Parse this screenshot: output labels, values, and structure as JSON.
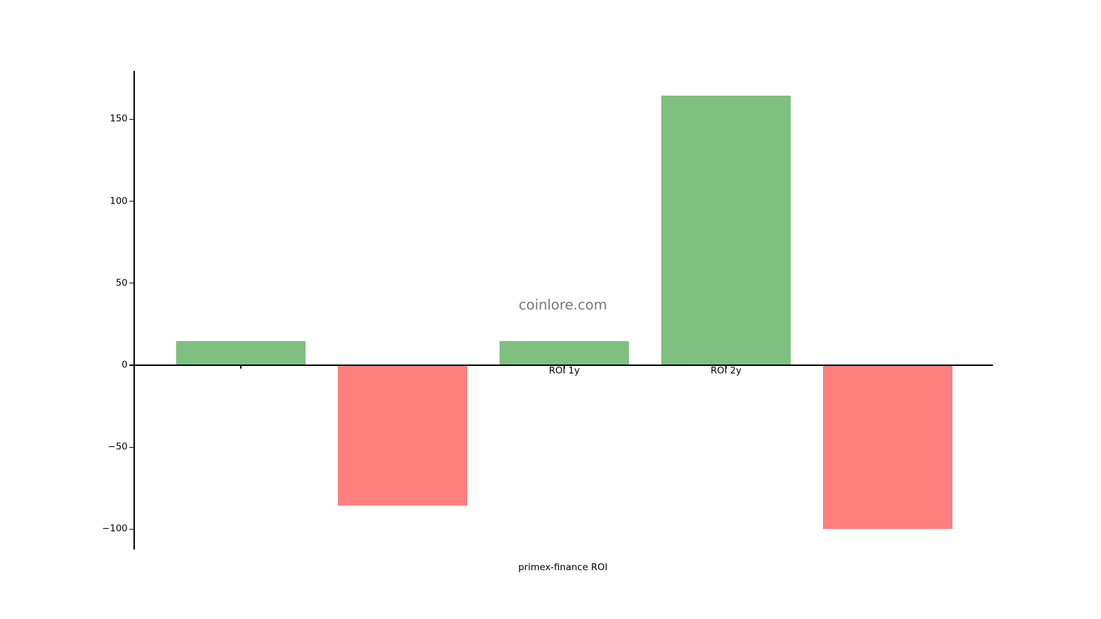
{
  "page": {
    "background": "#ffffff"
  },
  "watermark": {
    "text": "coinlore.com",
    "color": "#787878"
  },
  "chart_data": {
    "type": "bar",
    "title": "",
    "xlabel": "primex-finance ROI",
    "ylabel": "",
    "categories": [
      "",
      "",
      "ROI 1y",
      "ROI 2y",
      ""
    ],
    "values": [
      14.5,
      -85.7,
      14.5,
      164.6,
      -100
    ],
    "positive_color": "#7fbf7f",
    "negative_color": "#ff7f7f",
    "axis_color": "#000000",
    "text_color": "#000000",
    "y_ticks": [
      {
        "value": 150,
        "label": "150"
      },
      {
        "value": 100,
        "label": "100"
      },
      {
        "value": 50,
        "label": "50"
      },
      {
        "value": 0,
        "label": "0"
      },
      {
        "value": -50,
        "label": "−50"
      },
      {
        "value": -100,
        "label": "−100"
      }
    ],
    "ylim": [
      -112.4,
      179.5
    ],
    "grid": false,
    "legend_position": "none"
  }
}
